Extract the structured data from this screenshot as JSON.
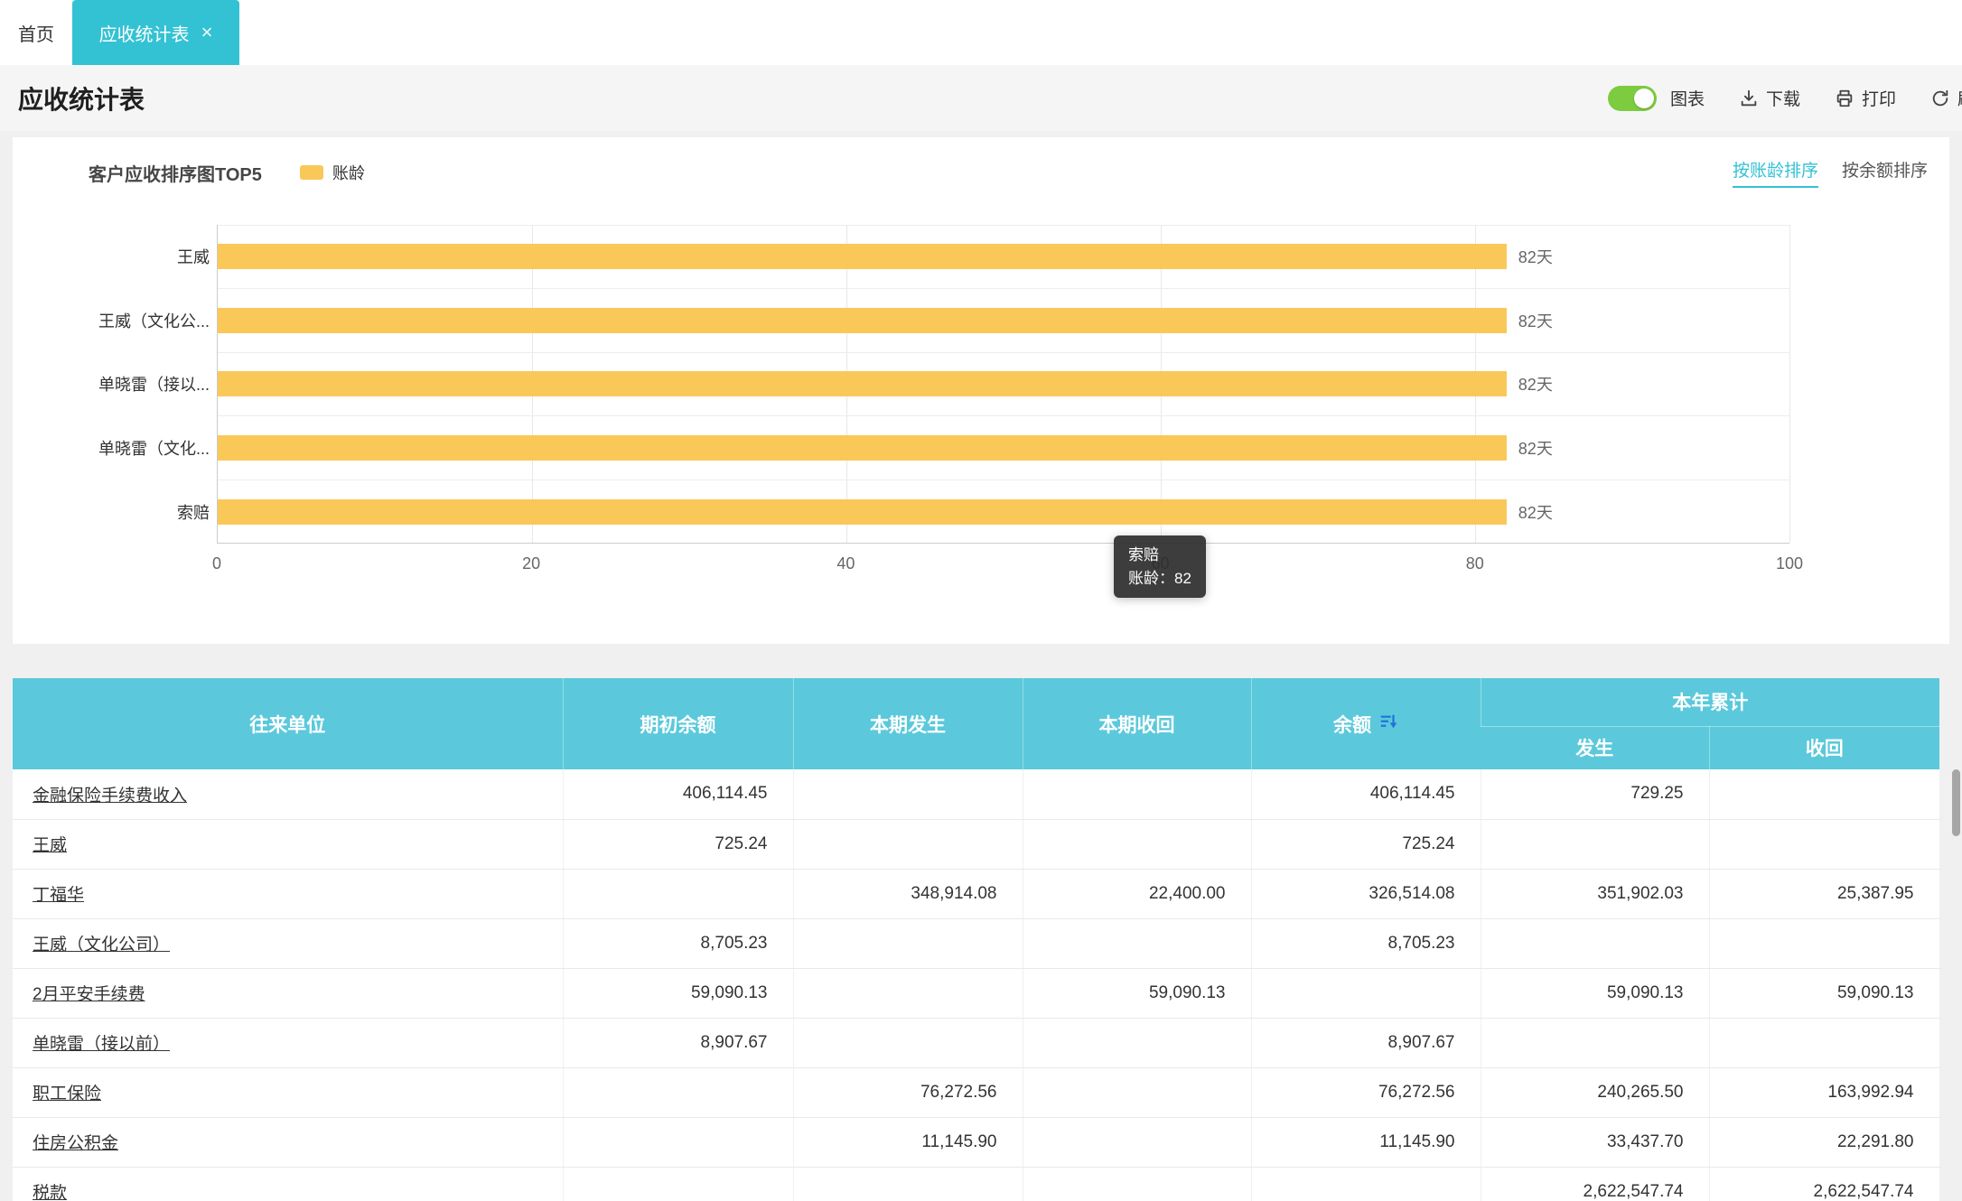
{
  "colors": {
    "accent": "#33C2D4",
    "table-header": "#5BC9DB",
    "bar": "#FAC858",
    "toggle-on": "#7DCB3F",
    "sort-icon": "#2173D9"
  },
  "tabs": {
    "home": "首页",
    "active_tab": "应收统计表",
    "close": "×"
  },
  "toolbar": {
    "title": "应收统计表",
    "chart_toggle_label": "图表",
    "download": "下载",
    "print": "打印",
    "refresh": "刷新"
  },
  "chart": {
    "title": "客户应收排序图TOP5",
    "legend_label": "账龄",
    "sort_by_age": "按账龄排序",
    "sort_by_balance": "按余额排序",
    "tooltip": {
      "title": "索赔",
      "line": "账龄：82"
    },
    "chart_data": {
      "type": "bar",
      "orientation": "horizontal",
      "title": "客户应收排序图TOP5",
      "series_name": "账龄",
      "categories": [
        "王威",
        "王威（文化公...",
        "单晓雷（接以...",
        "单晓雷（文化...",
        "索赔"
      ],
      "values": [
        82,
        82,
        82,
        82,
        82
      ],
      "bar_labels": [
        "82天",
        "82天",
        "82天",
        "82天",
        "82天"
      ],
      "xlim": [
        0,
        100
      ],
      "x_ticks": [
        0,
        20,
        40,
        60,
        80,
        100
      ],
      "grid": true,
      "legend_position": "top"
    }
  },
  "table": {
    "headers": {
      "unit": "往来单位",
      "opening": "期初余额",
      "current_incurred": "本期发生",
      "current_received": "本期收回",
      "balance": "余额",
      "ytd": "本年累计",
      "ytd_incurred": "发生",
      "ytd_received": "收回"
    },
    "rows": [
      {
        "unit": "金融保险手续费收入",
        "opening": "406,114.45",
        "incurred": "",
        "received": "",
        "balance": "406,114.45",
        "ytd_incurred": "729.25",
        "ytd_received": ""
      },
      {
        "unit": "王威",
        "opening": "725.24",
        "incurred": "",
        "received": "",
        "balance": "725.24",
        "ytd_incurred": "",
        "ytd_received": ""
      },
      {
        "unit": "丁福华",
        "opening": "",
        "incurred": "348,914.08",
        "received": "22,400.00",
        "balance": "326,514.08",
        "ytd_incurred": "351,902.03",
        "ytd_received": "25,387.95"
      },
      {
        "unit": "王威（文化公司）",
        "opening": "8,705.23",
        "incurred": "",
        "received": "",
        "balance": "8,705.23",
        "ytd_incurred": "",
        "ytd_received": ""
      },
      {
        "unit": "2月平安手续费",
        "opening": "59,090.13",
        "incurred": "",
        "received": "59,090.13",
        "balance": "",
        "ytd_incurred": "59,090.13",
        "ytd_received": "59,090.13"
      },
      {
        "unit": "单晓雷（接以前）",
        "opening": "8,907.67",
        "incurred": "",
        "received": "",
        "balance": "8,907.67",
        "ytd_incurred": "",
        "ytd_received": ""
      },
      {
        "unit": "职工保险",
        "opening": "",
        "incurred": "76,272.56",
        "received": "",
        "balance": "76,272.56",
        "ytd_incurred": "240,265.50",
        "ytd_received": "163,992.94"
      },
      {
        "unit": "住房公积金",
        "opening": "",
        "incurred": "11,145.90",
        "received": "",
        "balance": "11,145.90",
        "ytd_incurred": "33,437.70",
        "ytd_received": "22,291.80"
      },
      {
        "unit": "税款",
        "opening": "",
        "incurred": "",
        "received": "",
        "balance": "",
        "ytd_incurred": "2,622,547.74",
        "ytd_received": "2,622,547.74"
      }
    ]
  }
}
